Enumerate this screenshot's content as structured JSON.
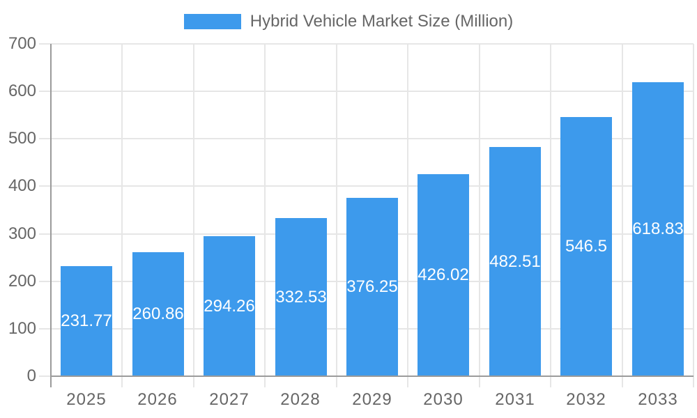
{
  "legend": {
    "label": "Hybrid Vehicle Market Size (Million)"
  },
  "colors": {
    "bar": "#3D9AEC",
    "grid": "#E6E6E6",
    "axis": "#9B9B9B",
    "tick_text": "#666666",
    "value_label": "#FFFFFF",
    "background": "#FFFFFF"
  },
  "chart_data": {
    "type": "bar",
    "title": "Hybrid Vehicle Market Size (Million)",
    "categories": [
      "2025",
      "2026",
      "2027",
      "2028",
      "2029",
      "2030",
      "2031",
      "2032",
      "2033"
    ],
    "values": [
      231.77,
      260.86,
      294.26,
      332.53,
      376.25,
      426.02,
      482.51,
      546.5,
      618.83
    ],
    "value_labels": [
      "231.77",
      "260.86",
      "294.26",
      "332.53",
      "376.25",
      "426.02",
      "482.51",
      "546.5",
      "618.83"
    ],
    "xlabel": "",
    "ylabel": "",
    "ylim": [
      0,
      700
    ],
    "yticks": [
      0,
      100,
      200,
      300,
      400,
      500,
      600,
      700
    ],
    "grid": true,
    "grid_vertical_at_category_boundaries": true,
    "legend_position": "top",
    "value_label_position": "inside-center"
  }
}
